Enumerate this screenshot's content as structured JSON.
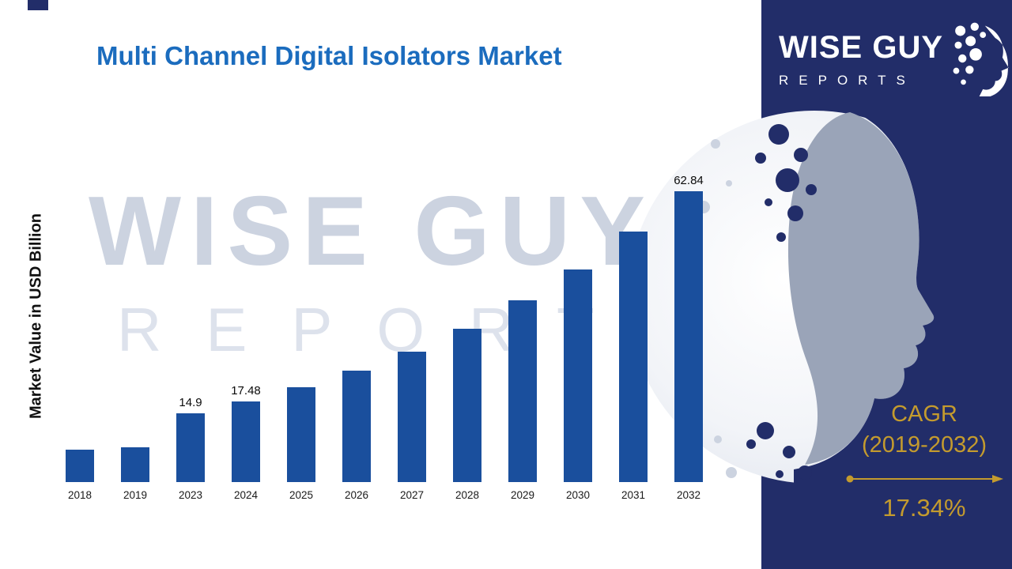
{
  "header": {
    "title": "Multi Channel Digital Isolators Market"
  },
  "watermark": {
    "line1": "WISE GUY",
    "line2": "REPORTS"
  },
  "logo": {
    "name_line": "WISE GUY",
    "sub_line": "REPORTS"
  },
  "cagr": {
    "label": "CAGR",
    "range": "(2019-2032)",
    "value": "17.34%"
  },
  "icons": {
    "logo_face": "face-profile-dots",
    "cagr_arrow": "arrow-right-with-dot"
  },
  "colors": {
    "bar": "#1a4f9d",
    "title_blue": "#1b6cbe",
    "panel_navy": "#222d69",
    "accent_gold": "#c49b2e"
  },
  "chart_data": {
    "type": "bar",
    "title": "Multi Channel Digital Isolators Market",
    "xlabel": "",
    "ylabel": "Market Value in USD Billion",
    "categories": [
      "2018",
      "2019",
      "2023",
      "2024",
      "2025",
      "2026",
      "2027",
      "2028",
      "2029",
      "2030",
      "2031",
      "2032"
    ],
    "values": [
      7.0,
      7.5,
      14.9,
      17.48,
      20.5,
      24.0,
      28.2,
      33.2,
      39.3,
      46.0,
      54.2,
      62.84
    ],
    "bar_labels": [
      "",
      "",
      "14.9",
      "17.48",
      "",
      "",
      "",
      "",
      "",
      "",
      "",
      "62.84"
    ],
    "ylim": [
      0,
      70
    ],
    "grid": false,
    "legend": false
  }
}
